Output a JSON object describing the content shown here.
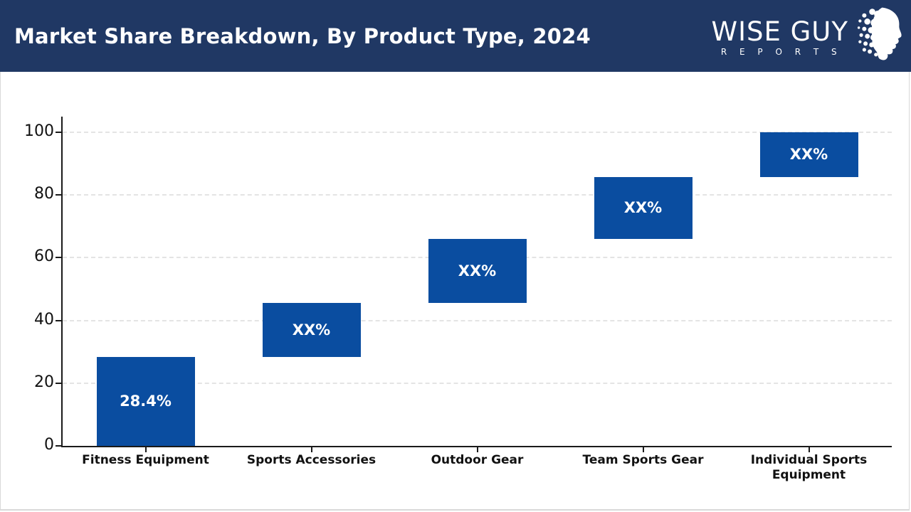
{
  "header": {
    "title": "Market Share Breakdown, By Product Type, 2024",
    "logo": {
      "line1": "WISE GUY",
      "line2": "R E P O R T S"
    }
  },
  "watermark": {
    "line1": "WISE GUY",
    "line2": "R E P O R T S"
  },
  "colors": {
    "header_bg": "#203864",
    "bar": "#0a4da0",
    "bar_label": "#ffffff",
    "gridline": "#e4e4e4",
    "axis": "#1a1a1a",
    "watermark": "#f2f2f2"
  },
  "chart_data": {
    "type": "bar",
    "subtype": "waterfall",
    "title": "Market Share Breakdown, By Product Type, 2024",
    "categories": [
      "Fitness Equipment",
      "Sports Accessories",
      "Outdoor Gear",
      "Team Sports Gear",
      "Individual Sports Equipment"
    ],
    "segments": [
      {
        "label": "28.4%",
        "start": 0,
        "end": 28.4
      },
      {
        "label": "XX%",
        "start": 28.4,
        "end": 45.5
      },
      {
        "label": "XX%",
        "start": 45.5,
        "end": 66.0
      },
      {
        "label": "XX%",
        "start": 66.0,
        "end": 85.8
      },
      {
        "label": "XX%",
        "start": 85.8,
        "end": 100
      }
    ],
    "ylim": [
      0,
      100
    ],
    "yticks": [
      0,
      20,
      40,
      60,
      80,
      100
    ],
    "grid": "horizontal-dashed",
    "legend": "none",
    "xlabel": "",
    "ylabel": ""
  }
}
